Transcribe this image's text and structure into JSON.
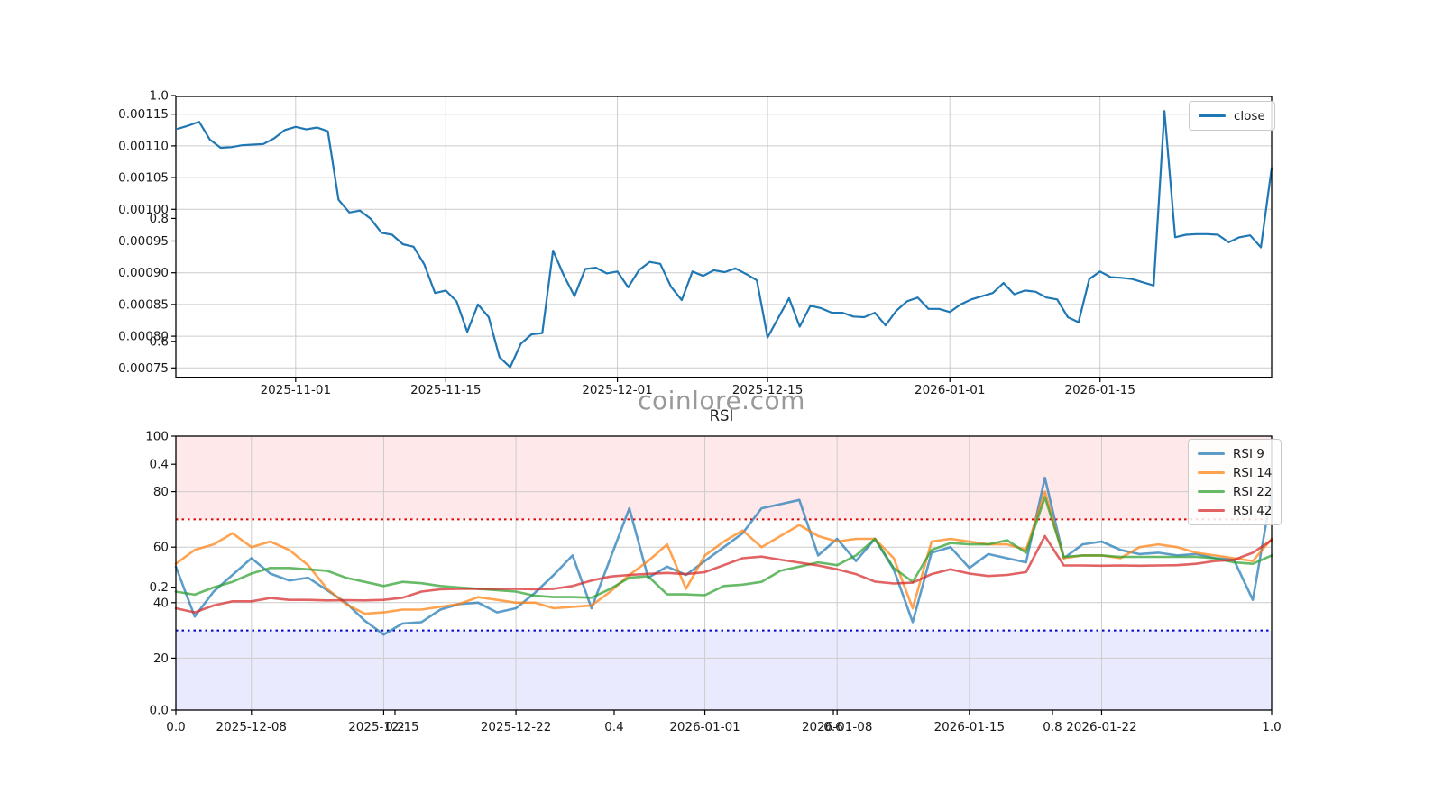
{
  "watermark": "coinlore.com",
  "overlay_axis": {
    "y_tick_labels": [
      "1.0",
      "0.8",
      "0.6",
      "0.4",
      "0.2",
      "0.0"
    ],
    "x_tick_labels": [
      "0.0",
      "0.2",
      "0.4",
      "0.6",
      "0.8",
      "1.0"
    ]
  },
  "colors": {
    "close_line": "#1f77b4",
    "rsi9": "rgba(31,119,180,0.72)",
    "rsi14": "rgba(255,127,14,0.72)",
    "rsi22": "rgba(44,160,44,0.72)",
    "rsi42": "rgba(214,39,40,0.72)",
    "overbought_band": "rgba(255,30,50,0.10)",
    "oversold_band": "rgba(50,50,255,0.10)",
    "overbought_line": "#e60000",
    "oversold_line": "#0000cc",
    "grid": "#cccccc",
    "spine": "#000000",
    "tick_text": "#1a1a1a",
    "watermark_text": "#999999"
  },
  "chart_data": [
    {
      "type": "line",
      "title": "",
      "x_start_date": "2025-10-21",
      "x_end_date": "2026-01-31",
      "x_tick_labels": [
        "2025-11-01",
        "2025-11-15",
        "2025-12-01",
        "2025-12-15",
        "2026-01-01",
        "2026-01-15"
      ],
      "x_tick_day_offsets": [
        11,
        25,
        41,
        55,
        72,
        86
      ],
      "total_days": 102,
      "y_tick_labels": [
        "0.00115",
        "0.00110",
        "0.00105",
        "0.00100",
        "0.00095",
        "0.00090",
        "0.00085",
        "0.00080",
        "0.00075"
      ],
      "ylim": [
        0.000734,
        0.001178
      ],
      "grid": true,
      "legend_position": "upper right",
      "series": [
        {
          "name": "close",
          "color": "#1f77b4",
          "values": [
            0.001127,
            0.001132,
            0.001138,
            0.00111,
            0.001097,
            0.001098,
            0.001101,
            0.001102,
            0.001103,
            0.001112,
            0.001125,
            0.00113,
            0.001126,
            0.001129,
            0.001123,
            0.001015,
            0.000995,
            0.000998,
            0.000985,
            0.000963,
            0.00096,
            0.000945,
            0.000941,
            0.000913,
            0.000868,
            0.000872,
            0.000855,
            0.000807,
            0.00085,
            0.00083,
            0.000767,
            0.000751,
            0.000788,
            0.000803,
            0.000805,
            0.000935,
            0.000896,
            0.000863,
            0.000906,
            0.000908,
            0.000899,
            0.000902,
            0.000877,
            0.000904,
            0.000917,
            0.000914,
            0.000878,
            0.000857,
            0.000902,
            0.000895,
            0.000904,
            0.000901,
            0.000907,
            0.000898,
            0.000888,
            0.000798,
            0.000829,
            0.00086,
            0.000815,
            0.000848,
            0.000844,
            0.000837,
            0.000837,
            0.000831,
            0.00083,
            0.000837,
            0.000817,
            0.00084,
            0.000855,
            0.000861,
            0.000843,
            0.000843,
            0.000838,
            0.00085,
            0.000858,
            0.000863,
            0.000868,
            0.000884,
            0.000866,
            0.000872,
            0.00087,
            0.000861,
            0.000858,
            0.00083,
            0.000822,
            0.00089,
            0.000902,
            0.000893,
            0.000892,
            0.00089,
            0.000885,
            0.00088,
            0.001155,
            0.000956,
            0.00096,
            0.000961,
            0.000961,
            0.00096,
            0.000948,
            0.000956,
            0.000959,
            0.00094,
            0.001065
          ]
        }
      ]
    },
    {
      "type": "line",
      "title": "RSI",
      "x_start_date": "2025-12-04",
      "x_end_date": "2026-01-31",
      "x_tick_labels": [
        "2025-12-08",
        "2025-12-15",
        "2025-12-22",
        "2026-01-01",
        "2026-01-08",
        "2026-01-15",
        "2026-01-22"
      ],
      "x_tick_day_offsets": [
        4,
        11,
        18,
        28,
        35,
        42,
        49
      ],
      "total_days": 58,
      "y_tick_labels": [
        "100",
        "80",
        "60",
        "40",
        "20"
      ],
      "y_tick_values": [
        100,
        80,
        60,
        40,
        20
      ],
      "ylim": [
        0,
        100
      ],
      "levels": {
        "overbought": 70,
        "oversold": 30
      },
      "bands": [
        {
          "from": 70,
          "to": 100,
          "role": "overbought"
        },
        {
          "from": 0,
          "to": 30,
          "role": "oversold"
        }
      ],
      "grid": true,
      "legend_position": "upper right",
      "series": [
        {
          "name": "RSI 9",
          "color": "rgba(31,119,180,0.72)",
          "values": [
            53,
            35,
            44,
            50,
            56,
            50.5,
            48,
            49,
            44.5,
            40,
            33.5,
            28.5,
            32.5,
            33,
            37.5,
            39.5,
            40,
            36.5,
            38,
            43.5,
            50,
            57,
            38,
            56,
            74,
            49,
            53,
            50,
            55,
            60,
            65,
            74,
            75.5,
            77,
            57,
            63,
            55,
            63,
            52,
            33,
            58,
            60,
            52.5,
            57.5,
            56,
            54.5,
            85,
            56,
            61,
            62,
            59,
            57.5,
            58,
            57,
            57.5,
            56,
            55.5,
            41,
            80
          ]
        },
        {
          "name": "RSI 14",
          "color": "rgba(255,127,14,0.72)",
          "values": [
            54,
            59,
            61,
            65,
            60,
            62,
            59,
            53.5,
            45,
            39.5,
            36,
            36.5,
            37.5,
            37.5,
            38.5,
            39.5,
            42,
            41,
            40,
            40,
            38,
            38.5,
            39,
            44,
            50,
            55,
            61,
            45,
            57,
            62,
            66,
            60,
            64,
            68,
            64,
            62,
            63,
            63,
            56,
            38,
            62,
            63,
            62,
            61,
            61,
            59,
            80,
            56,
            57,
            57,
            56,
            60,
            61,
            60,
            58,
            57,
            56,
            55,
            63
          ]
        },
        {
          "name": "RSI 22",
          "color": "rgba(44,160,44,0.72)",
          "values": [
            44,
            42.9,
            45.5,
            47.5,
            50.5,
            52.5,
            52.5,
            52,
            51.5,
            49,
            47.5,
            46,
            47.5,
            47,
            46,
            45.5,
            45,
            44.5,
            44,
            42.5,
            42,
            42,
            41.8,
            45,
            49,
            49.5,
            43,
            43,
            42.7,
            46,
            46.5,
            47.5,
            51.5,
            53,
            54.5,
            53.5,
            57,
            63,
            52.5,
            47.5,
            59,
            61.5,
            61,
            61,
            62.5,
            58,
            78,
            56.5,
            57,
            57,
            56.5,
            56.5,
            56.5,
            56.5,
            56.5,
            56,
            54.5,
            54,
            57
          ]
        },
        {
          "name": "RSI 42",
          "color": "rgba(214,39,40,0.72)",
          "values": [
            38,
            36.5,
            39,
            40.5,
            40.5,
            41.7,
            41,
            41,
            40.8,
            40.9,
            40.8,
            41,
            41.8,
            44,
            44.8,
            45,
            45,
            45,
            45,
            44.8,
            45,
            46,
            48,
            49.4,
            50,
            50.4,
            50.7,
            50.3,
            51,
            53.5,
            56,
            56.6,
            55.5,
            54.4,
            53.4,
            52,
            50.3,
            47.6,
            46.9,
            47.2,
            50.3,
            52,
            50.5,
            49.6,
            50,
            51,
            64,
            53.4,
            53.4,
            53.3,
            53.4,
            53.3,
            53.4,
            53.5,
            54,
            55,
            55.4,
            58,
            62.5
          ]
        }
      ]
    }
  ]
}
